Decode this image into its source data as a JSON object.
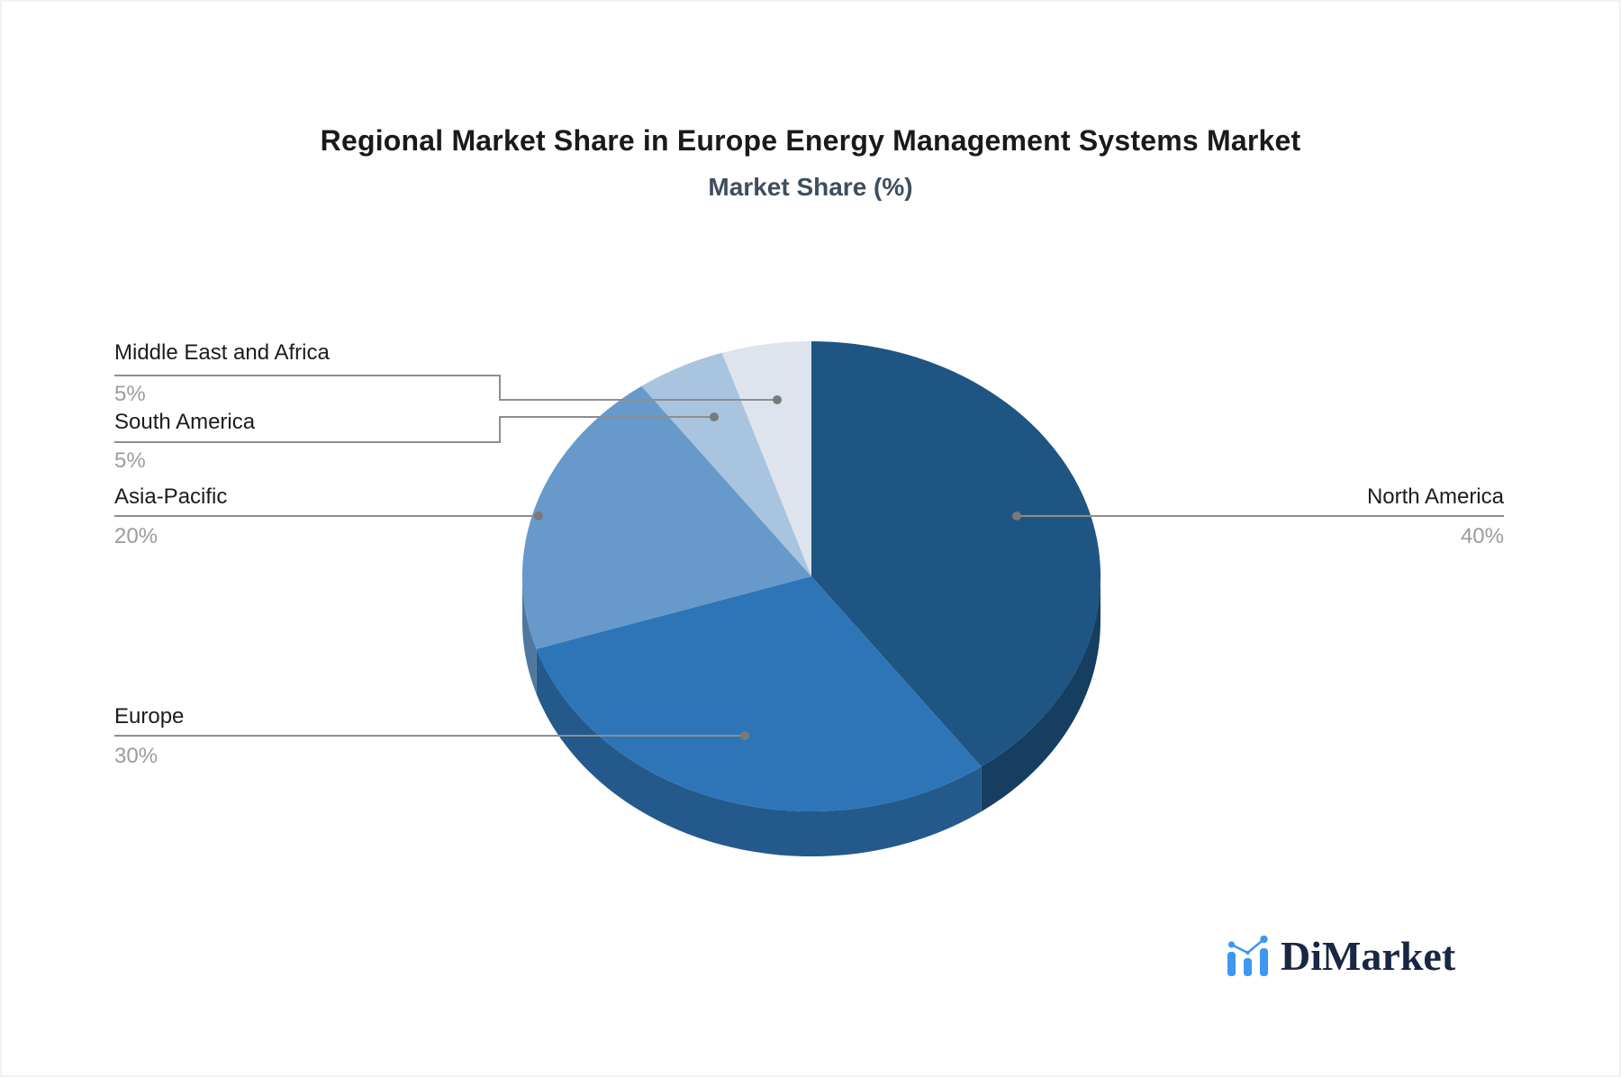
{
  "header": {
    "title": "Regional Market Share in Europe Energy Management Systems Market",
    "subtitle": "Market Share (%)"
  },
  "chart_data": {
    "type": "pie",
    "style": "3d",
    "title": "Regional Market Share in Europe Energy Management Systems Market",
    "subtitle": "Market Share (%)",
    "unit": "%",
    "start_angle_deg": 0,
    "direction": "clockwise",
    "label_style": "callout-lines-with-dots",
    "legend": "none",
    "series": [
      {
        "label": "North America",
        "value": 40,
        "display": "40%",
        "color": "#1F5582",
        "side_color": "#163E61"
      },
      {
        "label": "Europe",
        "value": 30,
        "display": "30%",
        "color": "#2E75B8",
        "side_color": "#24598C"
      },
      {
        "label": "Asia-Pacific",
        "value": 20,
        "display": "20%",
        "color": "#6899CB",
        "side_color": "#50779E"
      },
      {
        "label": "South America",
        "value": 5,
        "display": "5%",
        "color": "#A9C4DF",
        "side_color": "#87A5C2"
      },
      {
        "label": "Middle East and Africa",
        "value": 5,
        "display": "5%",
        "color": "#DDE4EE",
        "side_color": "#B6C3D6"
      }
    ]
  },
  "branding": {
    "logo_text": "DiMarket",
    "logo_icon": "bar-line-chart-icon",
    "logo_icon_color": "#3E97F2",
    "logo_text_color": "#1A2742"
  },
  "colors": {
    "background": "#FFFFFF",
    "title_text": "#1A1A1A",
    "subtitle_text": "#3F4D5E",
    "category_text": "#1C1C1C",
    "value_text": "#9C9C9C",
    "connector_line": "#8E8E8E",
    "connector_dot": "#7A7A7A"
  }
}
